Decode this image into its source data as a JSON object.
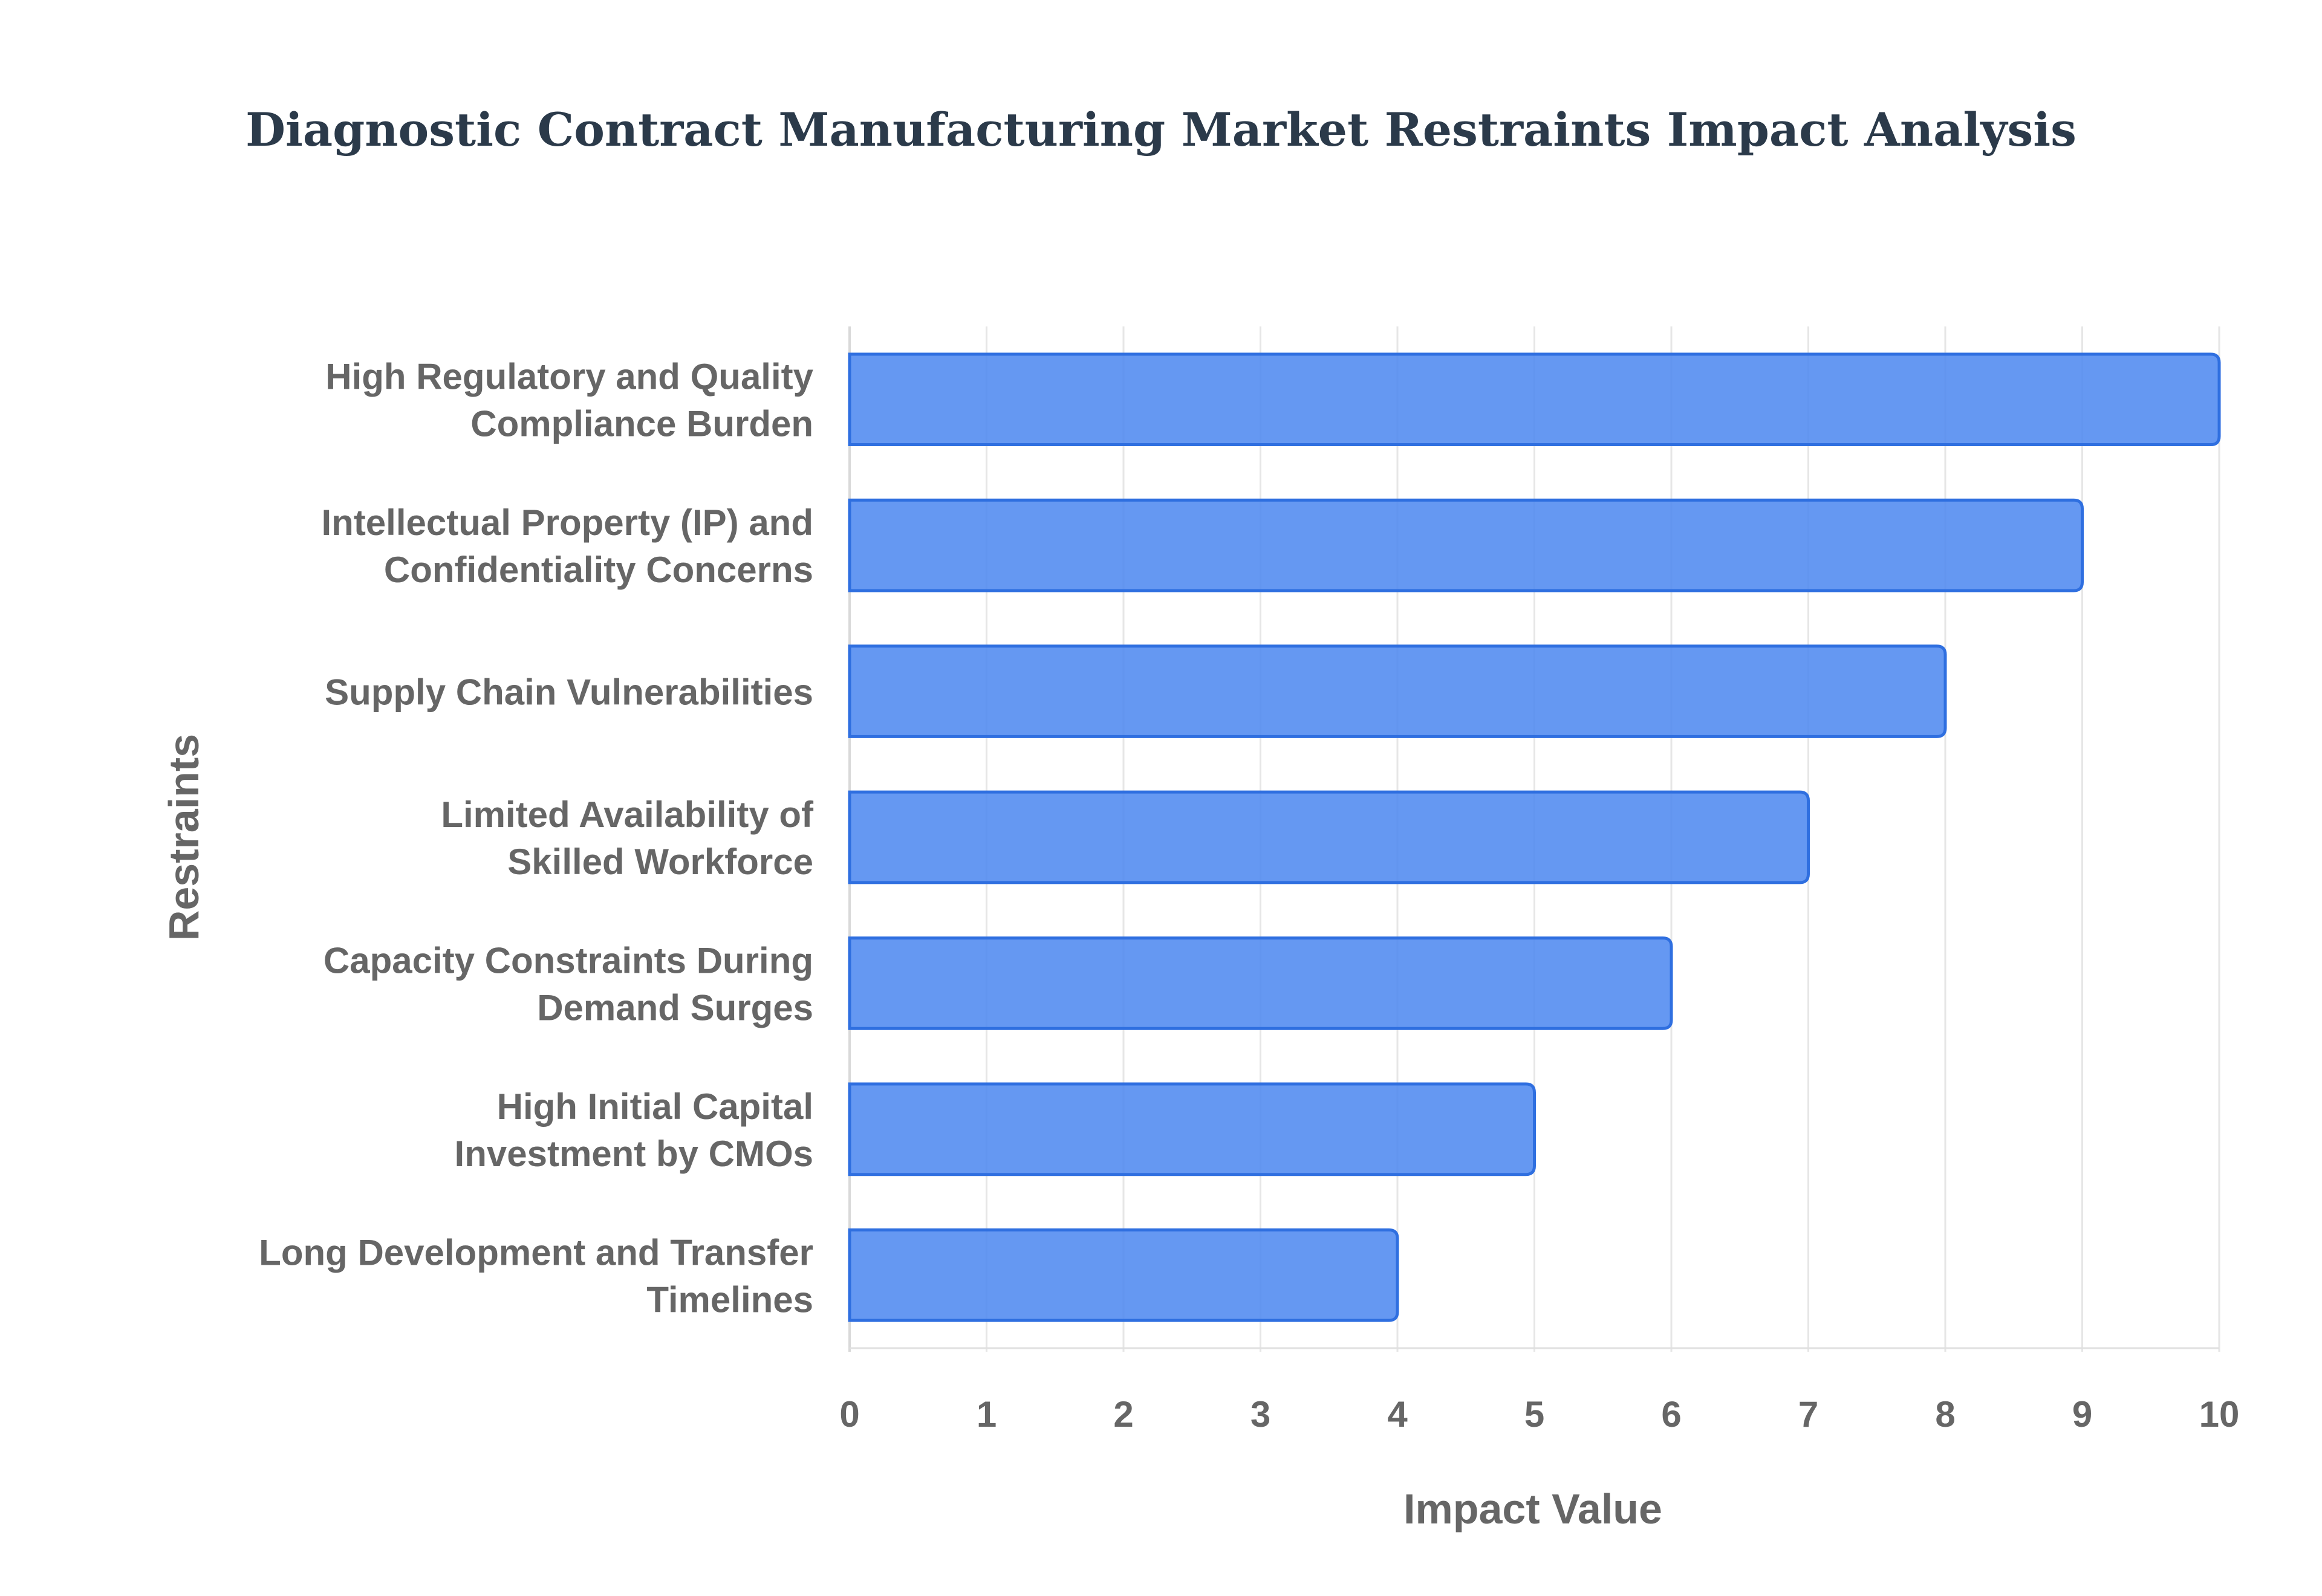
{
  "chart_data": {
    "type": "bar",
    "orientation": "horizontal",
    "title": "Diagnostic Contract Manufacturing Market Restraints Impact Analysis",
    "xlabel": "Impact Value",
    "ylabel": "Restraints",
    "xlim": [
      0,
      10
    ],
    "xticks": [
      "0",
      "1",
      "2",
      "3",
      "4",
      "5",
      "6",
      "7",
      "8",
      "9",
      "10"
    ],
    "grid": true,
    "bar_color": "#4a86f0",
    "bar_edge_color": "#2f6fe0",
    "categories": [
      [
        "High Regulatory and Quality",
        "Compliance Burden"
      ],
      [
        "Intellectual Property (IP) and",
        "Confidentiality Concerns"
      ],
      [
        "Supply Chain Vulnerabilities"
      ],
      [
        "Limited Availability of",
        "Skilled Workforce"
      ],
      [
        "Capacity Constraints During",
        "Demand Surges"
      ],
      [
        "High Initial Capital",
        "Investment by CMOs"
      ],
      [
        "Long Development and Transfer",
        "Timelines"
      ]
    ],
    "values": [
      10,
      9,
      8,
      7,
      6,
      5,
      4
    ]
  }
}
